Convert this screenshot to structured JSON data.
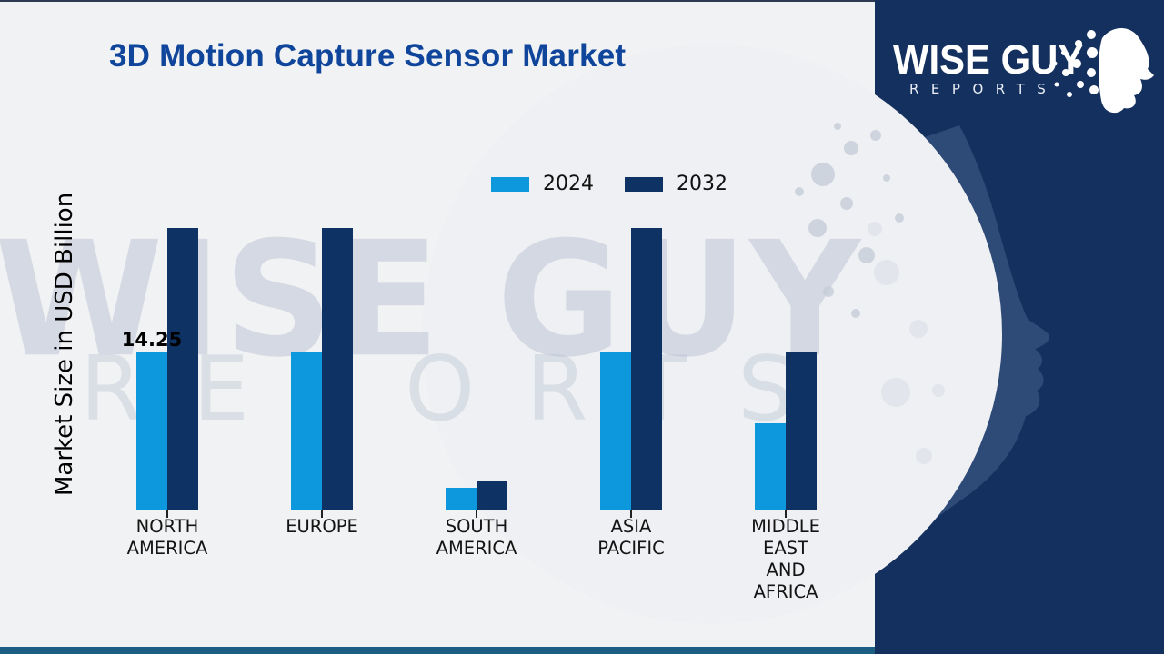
{
  "page": {
    "background": "#f1f2f3",
    "bottom_bar_color": "#1c5f82",
    "top_line_color": "#2e3a52"
  },
  "header": {
    "title": "3D Motion Capture Sensor Market",
    "title_color": "#10459c"
  },
  "logo": {
    "brand_top": "WISE GUY",
    "brand_bottom": "REPORTS",
    "panel_color": "#14305e",
    "face_silhouette_color": "#2e4a77",
    "head_icon": "head-profile-with-dots"
  },
  "watermark": {
    "line1": "WISE GUY",
    "line2": "REPORTS"
  },
  "chart_data": {
    "type": "bar",
    "title": "3D Motion Capture Sensor Market",
    "xlabel": "",
    "ylabel": "Market Size in USD Billion",
    "unit": "USD Billion",
    "categories": [
      "NORTH AMERICA",
      "EUROPE",
      "SOUTH AMERICA",
      "ASIA PACIFIC",
      "MIDDLE EAST AND AFRICA"
    ],
    "series": [
      {
        "name": "2024",
        "color": "#0d97dd",
        "values": [
          14.25,
          14.25,
          2.0,
          14.25,
          7.8
        ]
      },
      {
        "name": "2032",
        "color": "#0e3263",
        "values": [
          25.5,
          25.5,
          2.55,
          25.5,
          14.25
        ]
      }
    ],
    "annotations": [
      {
        "series": "2024",
        "category_index": 0,
        "text": "14.25"
      }
    ],
    "legend_position": "top-center",
    "grid": false,
    "ylim": [
      0,
      28
    ]
  }
}
